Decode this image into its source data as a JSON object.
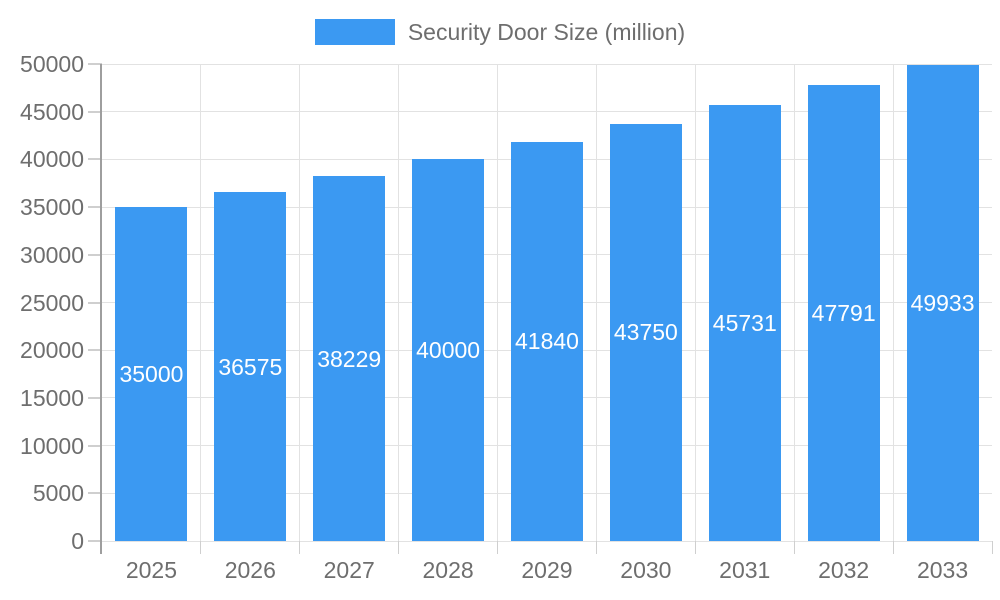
{
  "legend": {
    "label": "Security Door Size (million)",
    "swatch_color": "#3B99F2"
  },
  "chart_data": {
    "type": "bar",
    "title": "Security Door Size (million)",
    "categories": [
      "2025",
      "2026",
      "2027",
      "2028",
      "2029",
      "2030",
      "2031",
      "2032",
      "2033"
    ],
    "series": [
      {
        "name": "Security Door Size (million)",
        "values": [
          35000,
          36575,
          38229,
          40000,
          41840,
          43750,
          45731,
          47791,
          49933
        ]
      }
    ],
    "bar_labels": [
      "35000",
      "36575",
      "38229",
      "40000",
      "41840",
      "43750",
      "45731",
      "47791",
      "49933"
    ],
    "xlabel": "",
    "ylabel": "",
    "ylim": [
      0,
      50000
    ],
    "yticks": [
      0,
      5000,
      10000,
      15000,
      20000,
      25000,
      30000,
      35000,
      40000,
      45000,
      50000
    ],
    "grid": true,
    "legend_position": "top",
    "colors": {
      "bar": "#3B99F2",
      "bar_label": "#FFFFFF",
      "axis_text": "#6E6E6E",
      "gridline": "#E2E2E2",
      "axis_line": "#9E9E9E",
      "tick": "#CFCFCF",
      "background": "#FFFFFF"
    }
  }
}
